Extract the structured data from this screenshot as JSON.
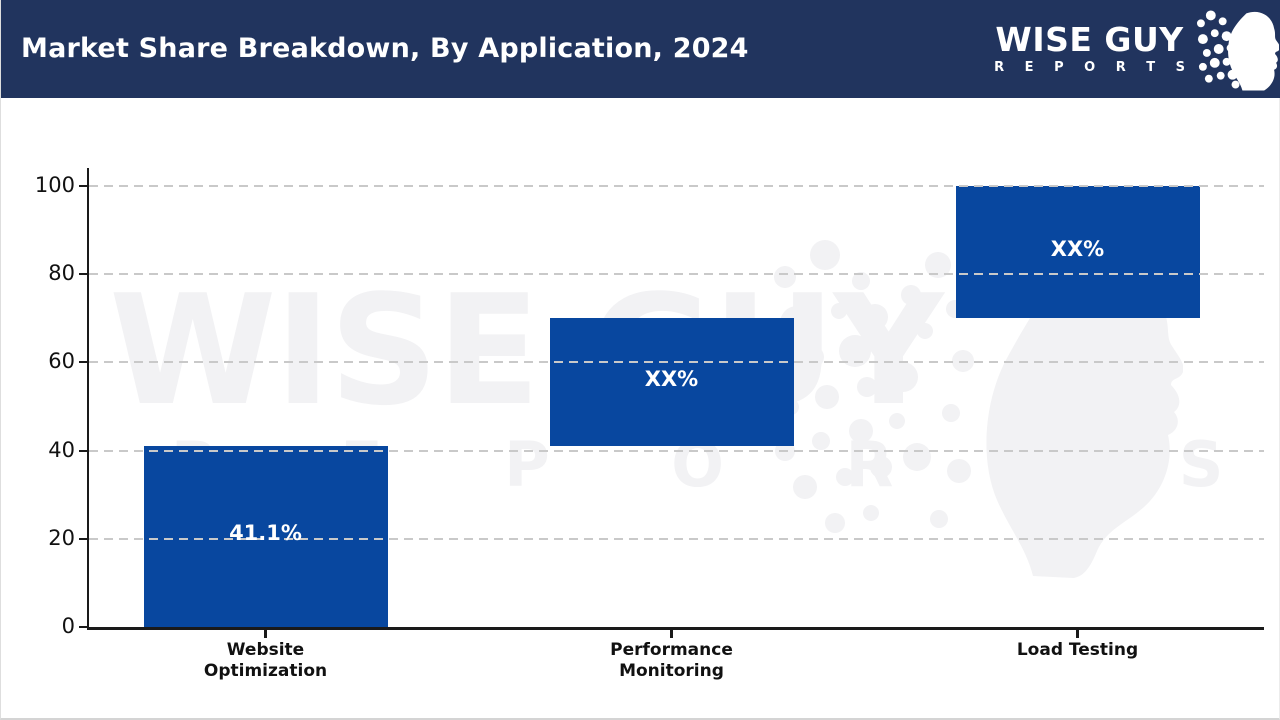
{
  "header": {
    "title": "Market Share Breakdown, By Application, 2024",
    "background_color": "#21345E",
    "logo": {
      "wordmark": "WISE GUY",
      "subtext": "R E P O R T S",
      "face_icon": "head-profile-dots"
    }
  },
  "watermark": {
    "wordmark": "WISE GUY",
    "subtext": "R E P O R T S",
    "face_icon": "head-profile-dots"
  },
  "chart_data": {
    "type": "bar",
    "subtype": "waterfall-breakdown",
    "title": "Market Share Breakdown, By Application, 2024",
    "categories": [
      "Website Optimization",
      "Performance Monitoring",
      "Load Testing"
    ],
    "category_display": [
      "Website\nOptimization",
      "Performance\nMonitoring",
      "Load Testing"
    ],
    "segments": [
      {
        "category": "Website Optimization",
        "start": 0,
        "end": 41.1,
        "value": 41.1,
        "label": "41.1%"
      },
      {
        "category": "Performance Monitoring",
        "start": 41.1,
        "end": 70,
        "value": 28.9,
        "label": "XX%"
      },
      {
        "category": "Load Testing",
        "start": 70,
        "end": 100,
        "value": 30,
        "label": "XX%"
      }
    ],
    "y_ticks": [
      0,
      20,
      40,
      60,
      80,
      100
    ],
    "ylim": [
      0,
      105
    ],
    "grid": "horizontal-dashed",
    "legend": "none",
    "colors": {
      "bar": "#08479F",
      "bar_label_text": "#FFFFFF",
      "axis": "#1A1A1A",
      "gridline": "#C9C9C9",
      "tick_label_text": "#111111",
      "header_background": "#21345E"
    }
  }
}
